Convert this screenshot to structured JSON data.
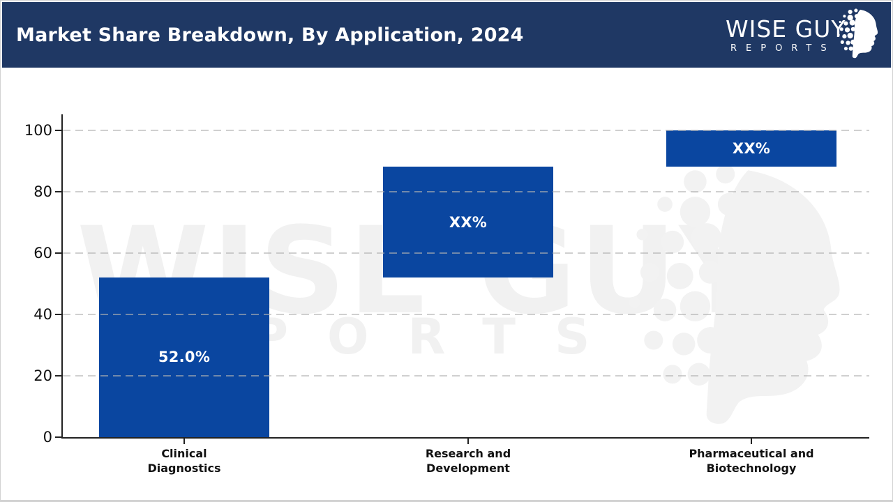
{
  "header": {
    "title": "Market Share Breakdown, By Application, 2024",
    "logo": {
      "line1": "WISE GUY",
      "line2": "REPORTS",
      "face_icon": "dotted-head-profile-icon"
    }
  },
  "watermark": {
    "line1": "WISE GUY",
    "line2": "REPORTS",
    "face_icon": "dotted-head-profile-icon"
  },
  "colors": {
    "header_bg": "#1F3864",
    "title_text": "#FFFFFF",
    "bar": "#0A46A0",
    "bar_label": "#FFFFFF",
    "axis": "#222222",
    "tick_label": "#111111",
    "gridline": "#B2B2B2",
    "watermark": "#F1F1F1",
    "frame_border": "#D2D2D2",
    "background": "#FFFFFF"
  },
  "chart_data": {
    "type": "bar",
    "variant": "floating-segments-waterfall",
    "title": "Market Share Breakdown, By Application, 2024",
    "categories": [
      "Clinical Diagnostics",
      "Research and Development",
      "Pharmaceutical and Biotechnology"
    ],
    "category_label_lines": [
      [
        "Clinical",
        "Diagnostics"
      ],
      [
        "Research and",
        "Development"
      ],
      [
        "Pharmaceutical and",
        "Biotechnology"
      ]
    ],
    "segments": [
      {
        "category": "Clinical Diagnostics",
        "from": 0,
        "to": 52,
        "label": "52.0%"
      },
      {
        "category": "Research and Development",
        "from": 52,
        "to": 88,
        "label": "XX%"
      },
      {
        "category": "Pharmaceutical and Biotechnology",
        "from": 88,
        "to": 100,
        "label": "XX%"
      }
    ],
    "yticks": [
      0,
      20,
      40,
      60,
      80,
      100
    ],
    "ylim": [
      0,
      105
    ],
    "xlabel": "",
    "ylabel": "",
    "grid": "horizontal-dashed-over-bars",
    "legend": "none"
  }
}
